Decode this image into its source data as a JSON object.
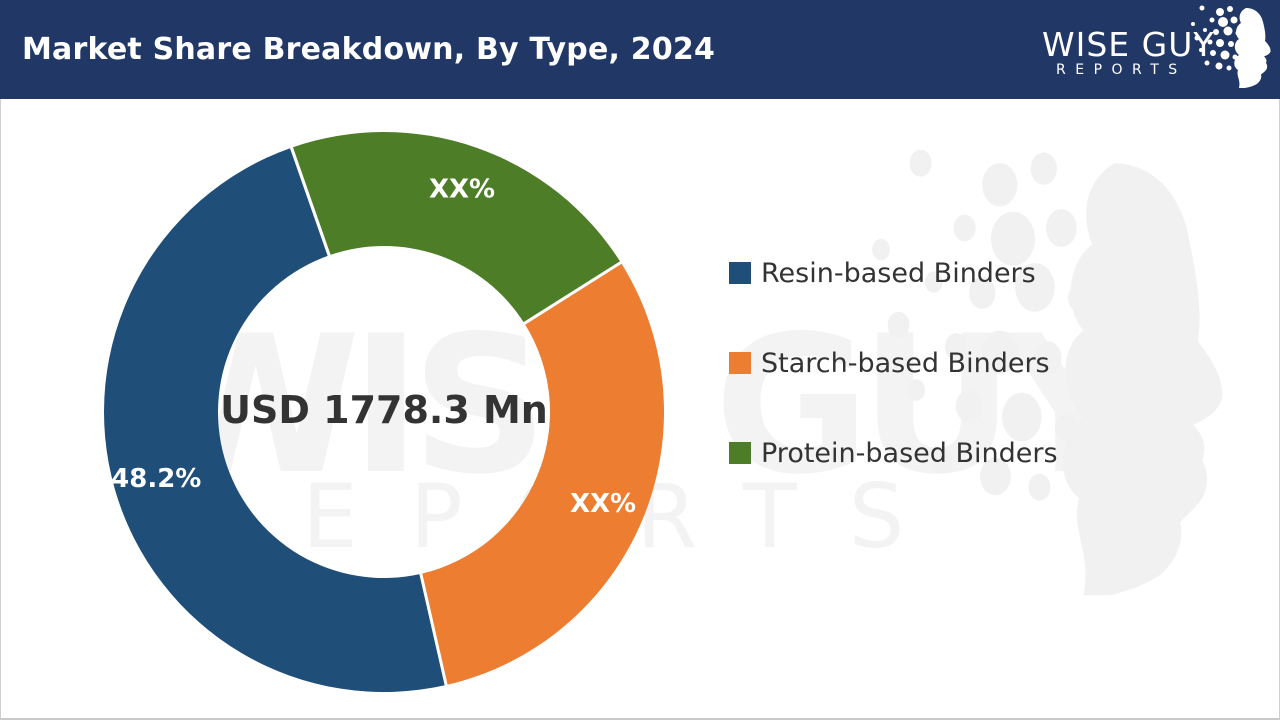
{
  "header": {
    "title": "Market Share Breakdown, By Type, 2024",
    "bg_color": "#213867",
    "logo": {
      "line1": "WISE GUY",
      "line2": "REPORTS"
    }
  },
  "chart_data": {
    "type": "pie",
    "subtype": "donut",
    "title": "Market Share Breakdown, By Type, 2024",
    "center_label": "USD 1778.3 Mn",
    "start_angle_deg": 109.3,
    "direction": "counterclockwise",
    "legend_position": "right",
    "segments": [
      {
        "name": "Resin-based Binders",
        "value_pct": 48.2,
        "label": "48.2%",
        "color": "#1F4E79"
      },
      {
        "name": "Starch-based Binders",
        "value_pct": 30.4,
        "label": "XX%",
        "color": "#ED7D31"
      },
      {
        "name": "Protein-based Binders",
        "value_pct": 21.4,
        "label": "XX%",
        "color": "#4E7D28"
      }
    ]
  },
  "watermark": {
    "line1": "WISE GUY",
    "line2": "REPORTS"
  },
  "colors": {
    "header_bg": "#213867",
    "body_bg": "#ffffff",
    "text_dark": "#333333",
    "watermark": "#f3f3f3",
    "border": "#cfcfcf"
  }
}
